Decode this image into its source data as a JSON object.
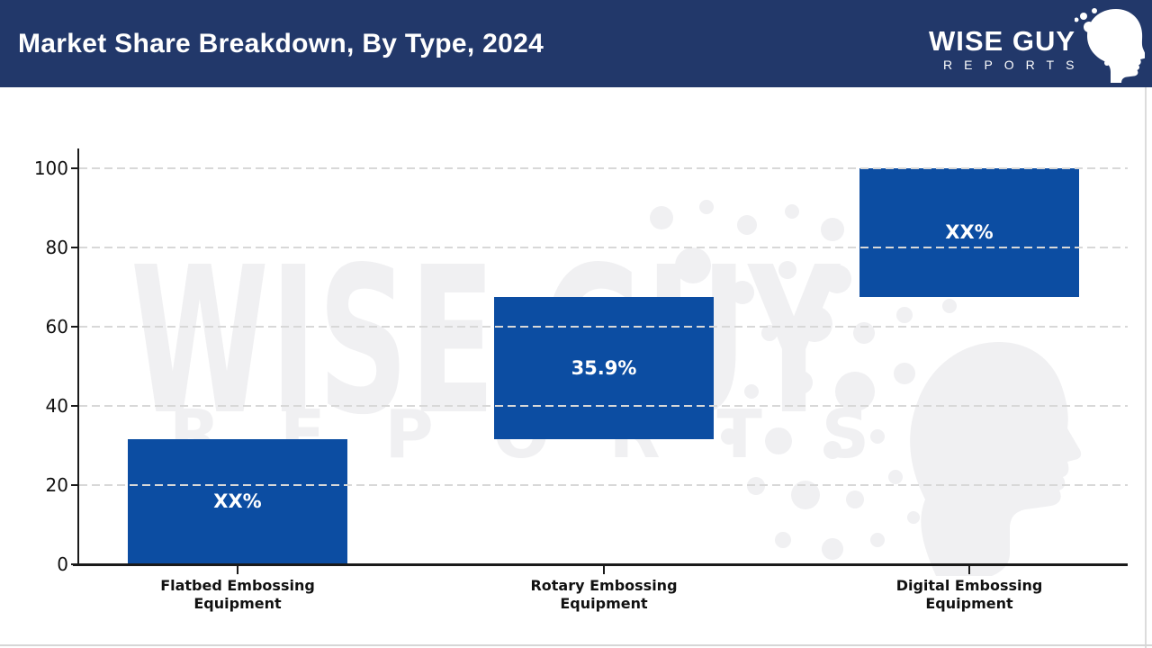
{
  "header": {
    "title": "Market Share Breakdown, By Type, 2024",
    "brand": {
      "line1": "WISE GUY",
      "line2": "REPORTS"
    }
  },
  "watermark": {
    "line1": "WISE GUY",
    "line2": "REPORTS"
  },
  "colors": {
    "header_bg": "#22386A",
    "bar": "#0C4DA2",
    "grid": "#D8D8D8",
    "axis": "#1A1A1A",
    "watermark": "#F0F0F2",
    "bar_label_text": "#FFFFFF",
    "title_text": "#FFFFFF"
  },
  "chart_data": {
    "type": "bar",
    "variant": "floating-segment-waterfall",
    "title": "Market Share Breakdown, By Type, 2024",
    "xlabel": "",
    "ylabel": "",
    "ylim": [
      0,
      100
    ],
    "y_ticks": [
      0,
      20,
      40,
      60,
      80,
      100
    ],
    "grid": "horizontal-dashed",
    "legend": null,
    "categories": [
      "Flatbed Embossing Equipment",
      "Rotary Embossing Equipment",
      "Digital Embossing Equipment"
    ],
    "segments": [
      {
        "category": "Flatbed Embossing Equipment",
        "from": 0,
        "to": 31.7,
        "size_pct": 31.7,
        "label": "XX%"
      },
      {
        "category": "Rotary Embossing Equipment",
        "from": 31.7,
        "to": 67.6,
        "size_pct": 35.9,
        "label": "35.9%"
      },
      {
        "category": "Digital Embossing Equipment",
        "from": 67.6,
        "to": 100,
        "size_pct": 32.4,
        "label": "XX%"
      }
    ]
  }
}
